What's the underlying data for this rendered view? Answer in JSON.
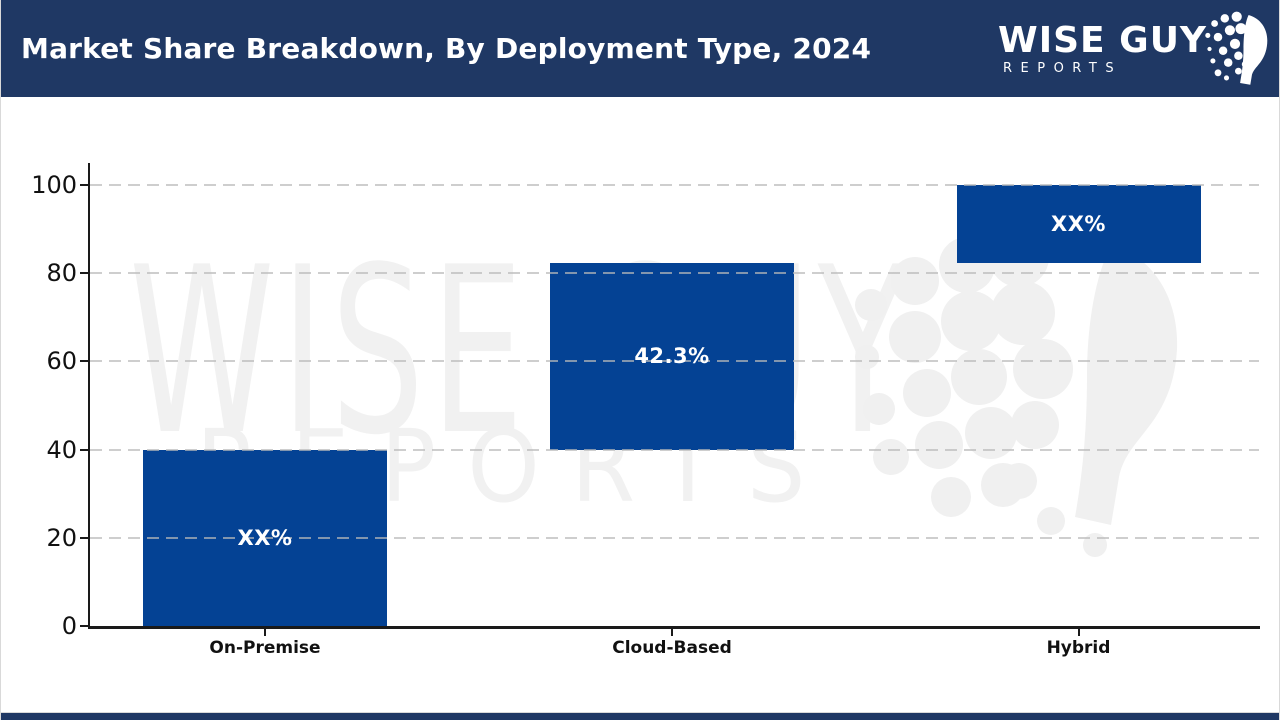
{
  "header": {
    "title": "Market Share Breakdown, By Deployment Type, 2024"
  },
  "logo": {
    "line1": "WISE GUY",
    "line2": "REPORTS"
  },
  "watermark": {
    "line1": "WISE GUY",
    "line2": "REPORTS"
  },
  "chart_data": {
    "type": "bar",
    "subtype": "waterfall-floating-bars",
    "title": "Market Share Breakdown, By Deployment Type, 2024",
    "categories": [
      "On-Premise",
      "Cloud-Based",
      "Hybrid"
    ],
    "bars": [
      {
        "category": "On-Premise",
        "start": 0,
        "end": 40,
        "height": 40,
        "label": "XX%"
      },
      {
        "category": "Cloud-Based",
        "start": 40,
        "end": 82.3,
        "height": 42.3,
        "label": "42.3%"
      },
      {
        "category": "Hybrid",
        "start": 82.3,
        "end": 100,
        "height": 17.7,
        "label": "XX%"
      }
    ],
    "xlabel": "",
    "ylabel": "",
    "ylim": [
      0,
      100
    ],
    "yticks": [
      0,
      20,
      40,
      60,
      80,
      100
    ],
    "grid": "horizontal-dashed",
    "legend": "none",
    "bar_color": "#044294",
    "bar_label_color": "#ffffff"
  },
  "colors": {
    "banner": "#1f3864",
    "bar": "#044294",
    "grid": "#d9d9d9",
    "axis": "#1a1a1a",
    "watermark": "#f1f1f1",
    "title_text": "#ffffff"
  }
}
